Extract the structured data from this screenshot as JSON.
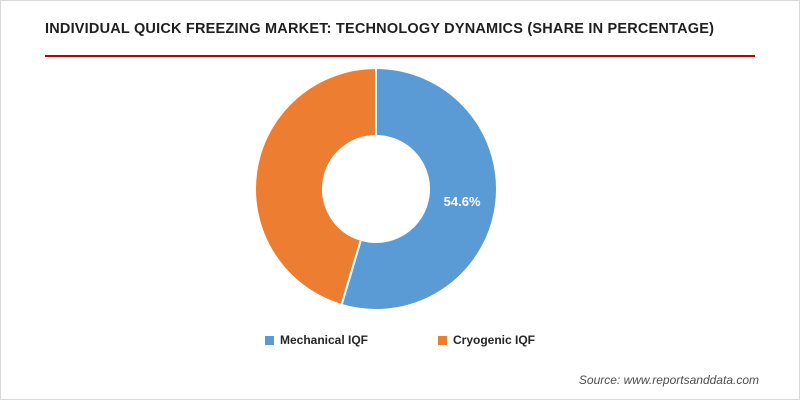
{
  "title": "INDIVIDUAL QUICK FREEZING MARKET: TECHNOLOGY DYNAMICS (SHARE IN PERCENTAGE)",
  "accent_line_color": "#c00000",
  "source_note": "Source: www.reportsanddata.com",
  "chart_data": {
    "type": "pie",
    "subtype": "donut",
    "title": "INDIVIDUAL QUICK FREEZING MARKET: TECHNOLOGY DYNAMICS (SHARE IN PERCENTAGE)",
    "categories": [
      "Mechanical IQF",
      "Cryogenic IQF"
    ],
    "values": [
      54.6,
      45.4
    ],
    "colors": [
      "#5b9bd5",
      "#ed7d31"
    ],
    "data_labels": [
      "54.6%",
      ""
    ],
    "start_angle_deg": 0,
    "direction": "clockwise",
    "inner_radius_ratio": 0.44,
    "legend_position": "bottom",
    "grid": false
  },
  "legend": {
    "items": [
      {
        "label": "Mechanical IQF",
        "color": "#5b9bd5"
      },
      {
        "label": "Cryogenic IQF",
        "color": "#ed7d31"
      }
    ]
  }
}
